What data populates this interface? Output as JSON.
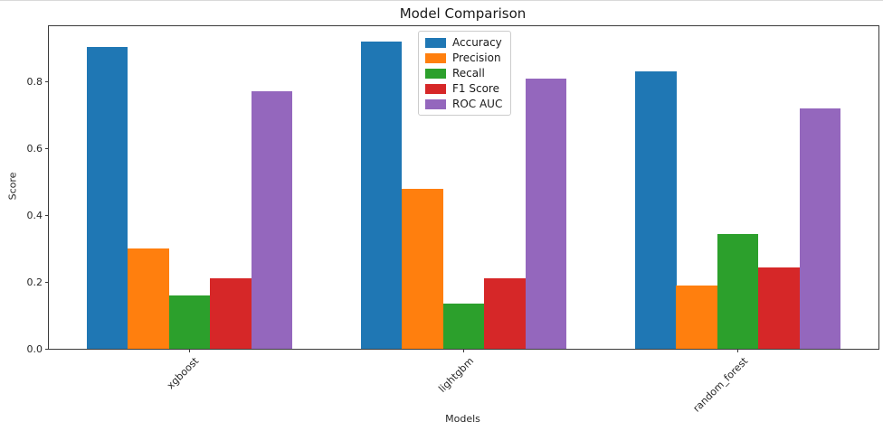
{
  "chart_data": {
    "type": "bar",
    "title": "Model Comparison",
    "xlabel": "Models",
    "ylabel": "Score",
    "categories": [
      "xgboost",
      "lightgbm",
      "random_forest"
    ],
    "series": [
      {
        "name": "Accuracy",
        "color": "#1f77b4",
        "values": [
          0.905,
          0.92,
          0.83
        ]
      },
      {
        "name": "Precision",
        "color": "#ff7f0e",
        "values": [
          0.3,
          0.48,
          0.19
        ]
      },
      {
        "name": "Recall",
        "color": "#2ca02c",
        "values": [
          0.16,
          0.135,
          0.345
        ]
      },
      {
        "name": "F1 Score",
        "color": "#d62728",
        "values": [
          0.21,
          0.21,
          0.245
        ]
      },
      {
        "name": "ROC AUC",
        "color": "#9467bd",
        "values": [
          0.77,
          0.81,
          0.72
        ]
      }
    ],
    "ytick_labels": [
      "0.0",
      "0.2",
      "0.4",
      "0.6",
      "0.8"
    ],
    "ytick_values": [
      0.0,
      0.2,
      0.4,
      0.6,
      0.8
    ],
    "ylim": [
      0,
      0.966
    ],
    "xlim": [
      -0.5125,
      2.5125
    ],
    "bar_width": 0.15,
    "grid": false,
    "legend_position": "upper-center",
    "xtick_rotation": 45
  }
}
